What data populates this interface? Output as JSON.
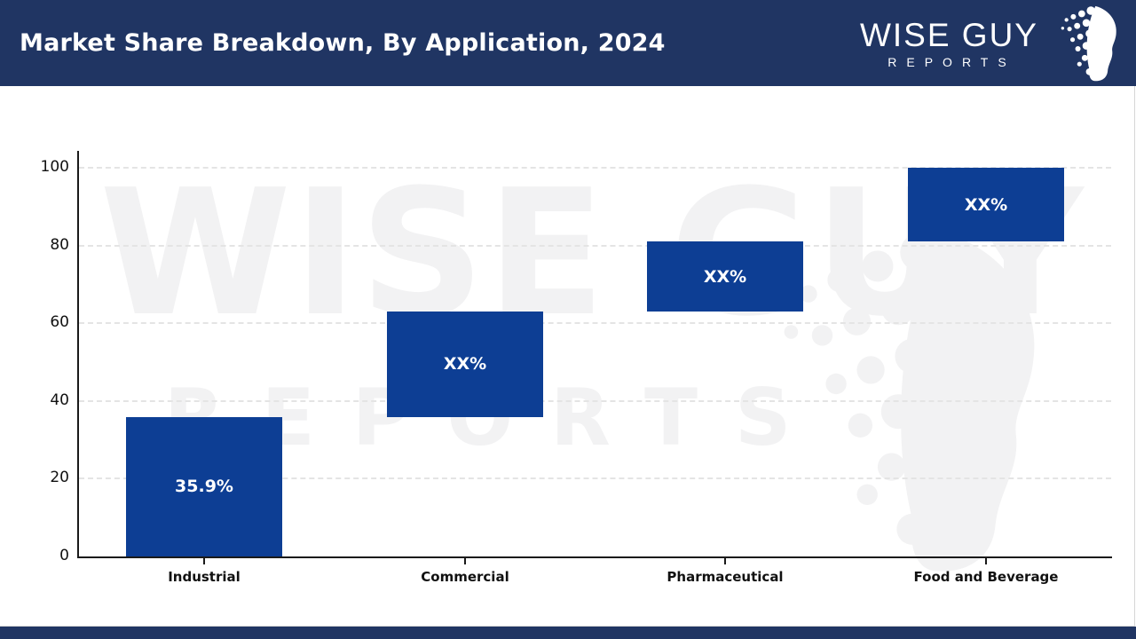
{
  "header": {
    "title": "Market Share Breakdown, By Application, 2024",
    "logo": {
      "line1": "WISE GUY",
      "line2": "REPORTS"
    }
  },
  "watermark": {
    "line1": "WISE GUY",
    "line2": "REPORTS"
  },
  "chart_data": {
    "type": "bar",
    "subtype": "floating-waterfall",
    "title": "Market Share Breakdown, By Application, 2024",
    "categories": [
      "Industrial",
      "Commercial",
      "Pharmaceutical",
      "Food and Beverage"
    ],
    "segments": [
      {
        "category": "Industrial",
        "start": 0,
        "end": 35.9,
        "label": "35.9%"
      },
      {
        "category": "Commercial",
        "start": 35.9,
        "end": 63,
        "label": "XX%"
      },
      {
        "category": "Pharmaceutical",
        "start": 63,
        "end": 81,
        "label": "XX%"
      },
      {
        "category": "Food and Beverage",
        "start": 81,
        "end": 100,
        "label": "XX%"
      }
    ],
    "xlabel": "",
    "ylabel": "",
    "ylim": [
      0,
      100
    ],
    "yticks": [
      0,
      20,
      40,
      60,
      80,
      100
    ],
    "grid": "horizontal-dashed",
    "legend": "none",
    "colors": {
      "bar": "#0d3e94",
      "bar_label": "#ffffff",
      "header_bg": "#203563",
      "axis": "#1a1a1a",
      "gridline": "#e4e4e4",
      "watermark": "#f2f2f3"
    }
  }
}
